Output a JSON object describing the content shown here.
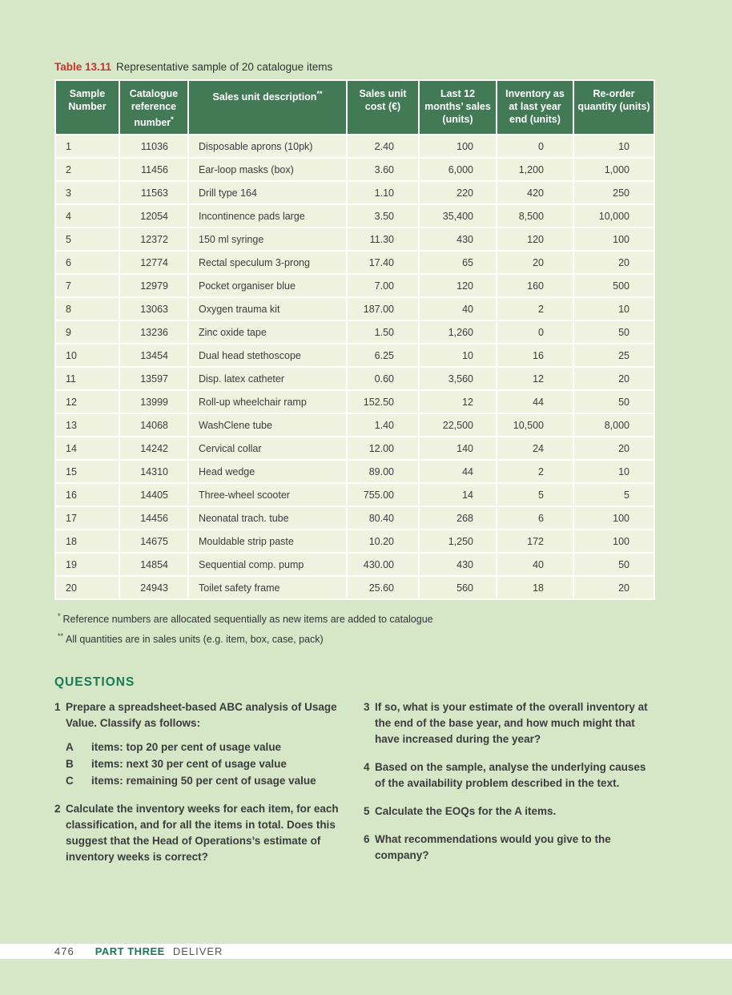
{
  "colors": {
    "page_background": "#d6e7c8",
    "table_header_green": "#417a55",
    "row_background": "#eef2df",
    "table_label_red": "#c8332b",
    "heading_green": "#1a7a55",
    "body_text": "#3c3c3c"
  },
  "table": {
    "label": "Table 13.11",
    "title": "Representative sample of 20 catalogue items",
    "columns": [
      {
        "label": "Sample Number",
        "sup": ""
      },
      {
        "label": "Catalogue reference number",
        "sup": "*"
      },
      {
        "label": "Sales unit description",
        "sup": "**"
      },
      {
        "label": "Sales unit cost (€)",
        "sup": ""
      },
      {
        "label": "Last 12 months’ sales (units)",
        "sup": ""
      },
      {
        "label": "Inventory as at last year end (units)",
        "sup": ""
      },
      {
        "label": "Re-order quantity (units)",
        "sup": ""
      }
    ],
    "rows": [
      [
        "1",
        "11036",
        "Disposable aprons (10pk)",
        "2.40",
        "100",
        "0",
        "10"
      ],
      [
        "2",
        "11456",
        "Ear-loop masks (box)",
        "3.60",
        "6,000",
        "1,200",
        "1,000"
      ],
      [
        "3",
        "11563",
        "Drill type 164",
        "1.10",
        "220",
        "420",
        "250"
      ],
      [
        "4",
        "12054",
        "Incontinence pads large",
        "3.50",
        "35,400",
        "8,500",
        "10,000"
      ],
      [
        "5",
        "12372",
        "150 ml syringe",
        "11.30",
        "430",
        "120",
        "100"
      ],
      [
        "6",
        "12774",
        "Rectal speculum 3-prong",
        "17.40",
        "65",
        "20",
        "20"
      ],
      [
        "7",
        "12979",
        "Pocket organiser blue",
        "7.00",
        "120",
        "160",
        "500"
      ],
      [
        "8",
        "13063",
        "Oxygen trauma kit",
        "187.00",
        "40",
        "2",
        "10"
      ],
      [
        "9",
        "13236",
        "Zinc oxide tape",
        "1.50",
        "1,260",
        "0",
        "50"
      ],
      [
        "10",
        "13454",
        "Dual head stethoscope",
        "6.25",
        "10",
        "16",
        "25"
      ],
      [
        "11",
        "13597",
        "Disp. latex catheter",
        "0.60",
        "3,560",
        "12",
        "20"
      ],
      [
        "12",
        "13999",
        "Roll-up wheelchair ramp",
        "152.50",
        "12",
        "44",
        "50"
      ],
      [
        "13",
        "14068",
        "WashClene tube",
        "1.40",
        "22,500",
        "10,500",
        "8,000"
      ],
      [
        "14",
        "14242",
        "Cervical collar",
        "12.00",
        "140",
        "24",
        "20"
      ],
      [
        "15",
        "14310",
        "Head wedge",
        "89.00",
        "44",
        "2",
        "10"
      ],
      [
        "16",
        "14405",
        "Three-wheel scooter",
        "755.00",
        "14",
        "5",
        "5"
      ],
      [
        "17",
        "14456",
        "Neonatal trach. tube",
        "80.40",
        "268",
        "6",
        "100"
      ],
      [
        "18",
        "14675",
        "Mouldable strip paste",
        "10.20",
        "1,250",
        "172",
        "100"
      ],
      [
        "19",
        "14854",
        "Sequential comp. pump",
        "430.00",
        "430",
        "40",
        "50"
      ],
      [
        "20",
        "24943",
        "Toilet safety frame",
        "25.60",
        "560",
        "18",
        "20"
      ]
    ],
    "footnotes": [
      {
        "sup": "*",
        "text": "Reference numbers are allocated sequentially as new items are added to catalogue"
      },
      {
        "sup": "**",
        "text": "All quantities are in sales units (e.g. item, box, case, pack)"
      }
    ]
  },
  "questions": {
    "heading": "QUESTIONS",
    "left": [
      {
        "num": "1",
        "text": "Prepare a spreadsheet-based ABC analysis of Usage Value. Classify as follows:",
        "subitems": [
          {
            "letter": "A",
            "text": "items: top 20 per cent of usage value"
          },
          {
            "letter": "B",
            "text": "items: next 30 per cent of usage value"
          },
          {
            "letter": "C",
            "text": "items: remaining 50 per cent of usage value"
          }
        ]
      },
      {
        "num": "2",
        "text": "Calculate the inventory weeks for each item, for each classification, and for all the items in total. Does this suggest that the Head of Operations’s estimate of inventory weeks is correct?"
      }
    ],
    "right": [
      {
        "num": "3",
        "text": "If so, what is your estimate of the overall inventory at the end of the base year, and how much might that have increased during the year?"
      },
      {
        "num": "4",
        "text": "Based on the sample, analyse the underlying causes of the availability problem described in the text."
      },
      {
        "num": "5",
        "text": "Calculate the EOQs for the A items."
      },
      {
        "num": "6",
        "text": "What recommendations would you give to the company?"
      }
    ]
  },
  "footer": {
    "page_number": "476",
    "part": "PART THREE",
    "section": "DELIVER"
  }
}
